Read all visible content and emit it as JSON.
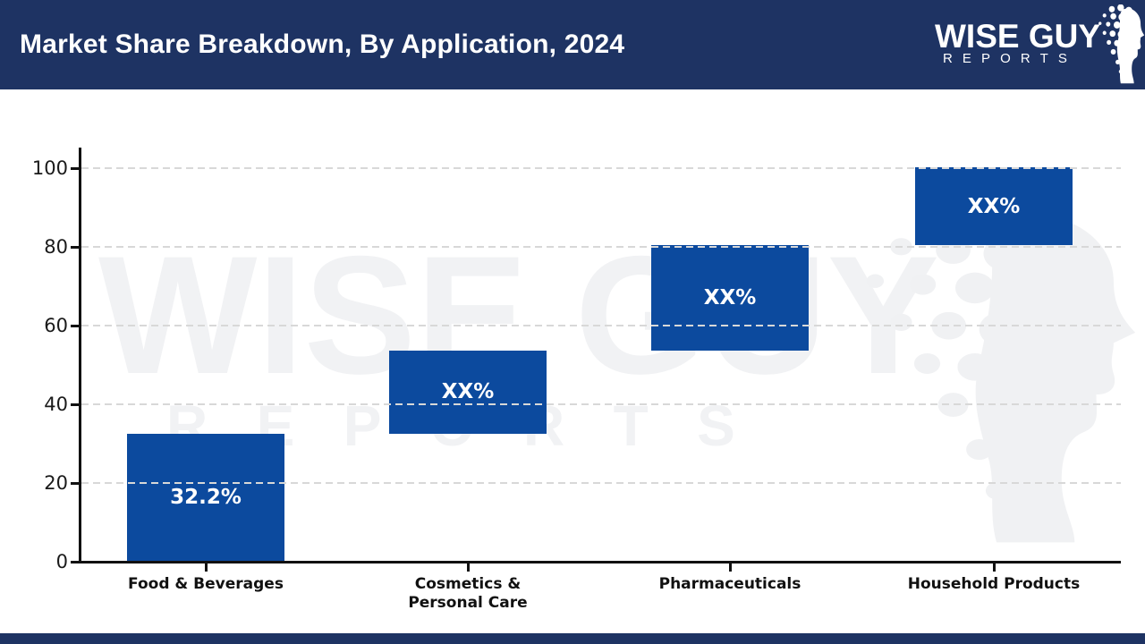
{
  "header": {
    "title": "Market Share Breakdown, By Application, 2024",
    "brand": {
      "line1": "WISE GUY",
      "line2": "REPORTS"
    }
  },
  "watermark": {
    "line1": "WISE GUY",
    "line2": "REPORTS"
  },
  "chart_data": {
    "type": "bar",
    "subtype": "waterfall",
    "title": "Market Share Breakdown, By Application, 2024",
    "xlabel": "",
    "ylabel": "",
    "ylim": [
      0,
      105
    ],
    "yticks": [
      0,
      20,
      40,
      60,
      80,
      100
    ],
    "grid": "horizontal-dashed",
    "legend": "none",
    "categories": [
      "Food & Beverages",
      "Cosmetics &\nPersonal Care",
      "Pharmaceuticals",
      "Household Products"
    ],
    "bars": [
      {
        "category": "Food & Beverages",
        "start": 0,
        "end": 32.2,
        "label": "32.2%"
      },
      {
        "category": "Cosmetics &\nPersonal Care",
        "start": 32.2,
        "end": 53.5,
        "label": "XX%"
      },
      {
        "category": "Pharmaceuticals",
        "start": 53.5,
        "end": 80.2,
        "label": "XX%"
      },
      {
        "category": "Household Products",
        "start": 80.2,
        "end": 100,
        "label": "XX%"
      }
    ],
    "bar_color": "#0c4a9e",
    "label_color": "#ffffff"
  },
  "colors": {
    "navy": "#1e3363",
    "bar_blue": "#0c4a9e",
    "grid": "#d8d8d8",
    "axis": "#1a1a1a",
    "watermark": "#f1f2f4"
  }
}
